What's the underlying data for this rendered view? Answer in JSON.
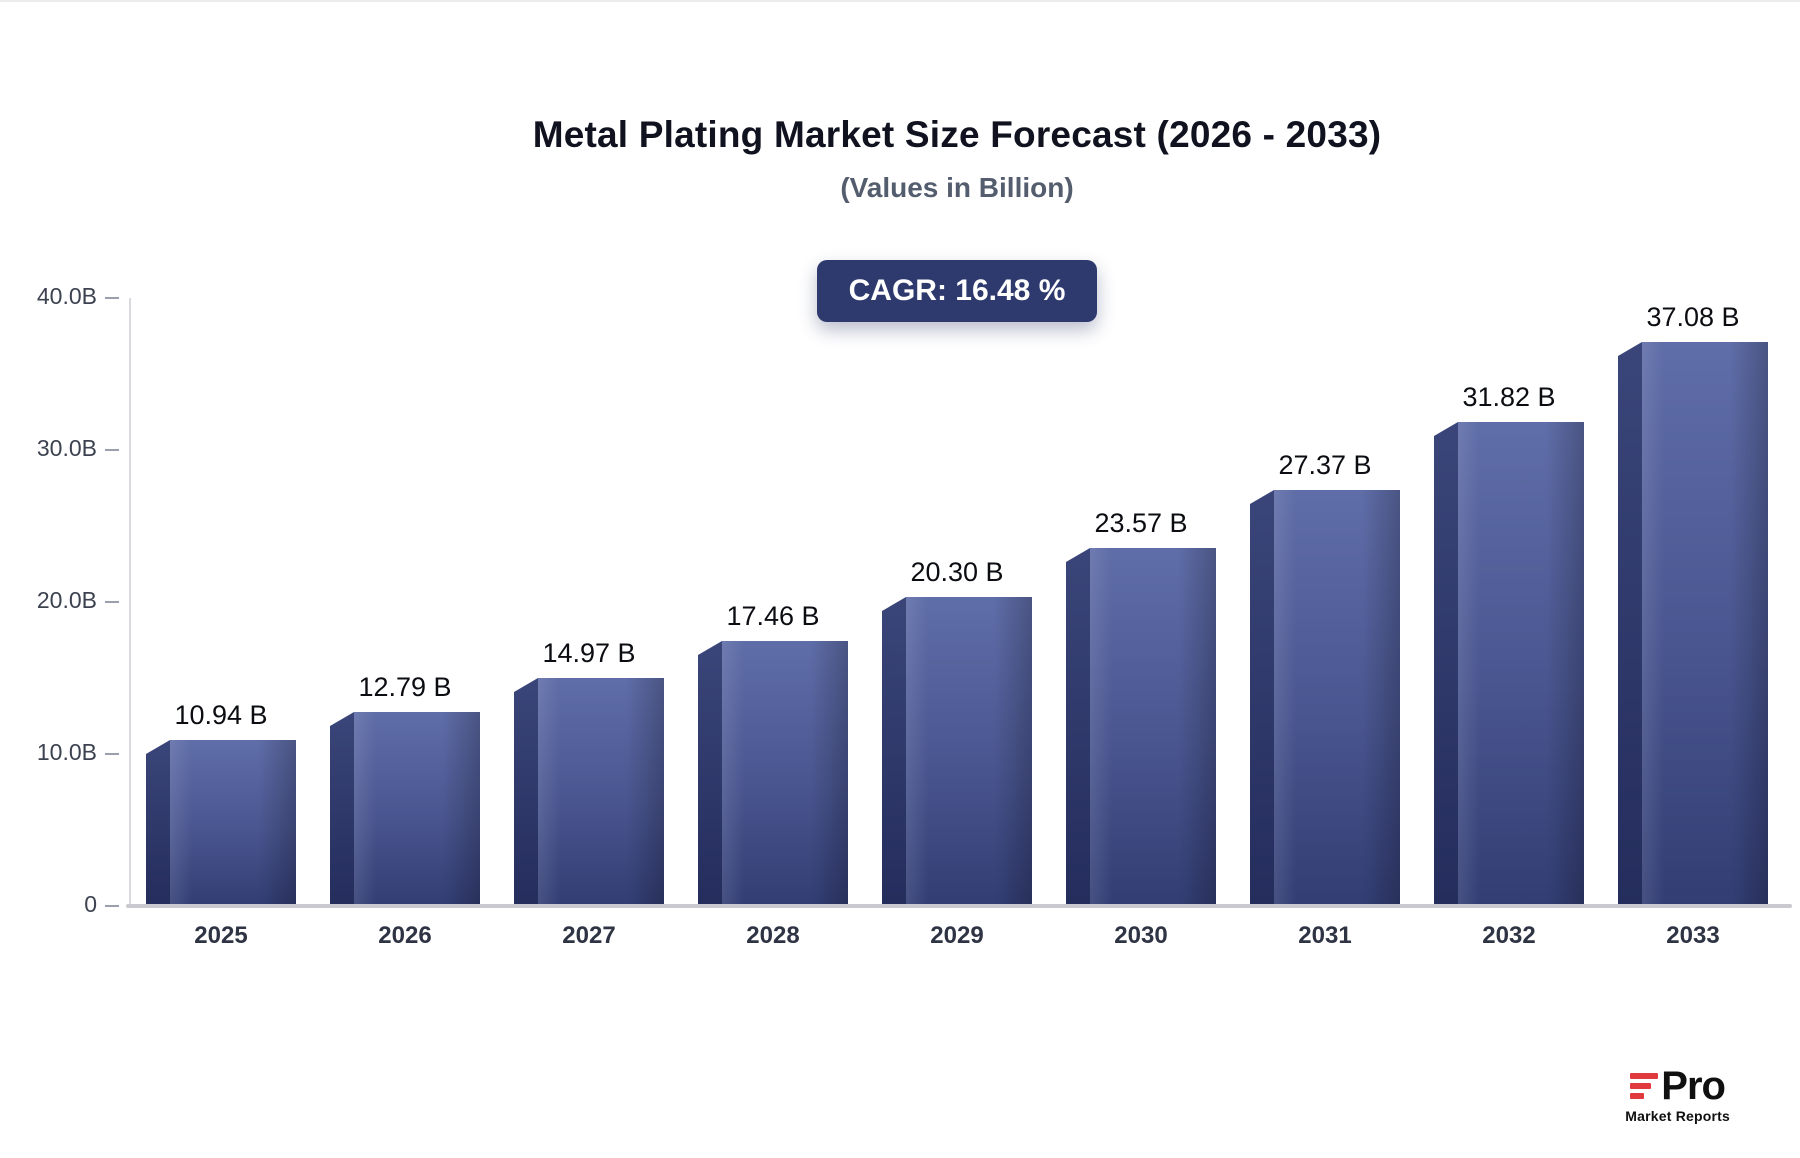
{
  "header": {
    "title": "Metal Plating Market Size Forecast (2026 - 2033)",
    "subtitle": "(Values in Billion)",
    "cagr_badge": "CAGR: 16.48 %"
  },
  "chart_data": {
    "type": "bar",
    "title": "Metal Plating Market Size Forecast (2026 - 2033)",
    "subtitle": "(Values in Billion)",
    "cagr_percent": 16.48,
    "unit": "Billion",
    "categories": [
      "2025",
      "2026",
      "2027",
      "2028",
      "2029",
      "2030",
      "2031",
      "2032",
      "2033"
    ],
    "values": [
      10.94,
      12.79,
      14.97,
      17.46,
      20.3,
      23.57,
      27.37,
      31.82,
      37.08
    ],
    "value_labels": [
      "10.94 B",
      "12.79 B",
      "14.97 B",
      "17.46 B",
      "20.30 B",
      "23.57 B",
      "27.37 B",
      "31.82 B",
      "37.08 B"
    ],
    "ylim": [
      0,
      40
    ],
    "yticks": [
      0,
      10,
      20,
      30,
      40
    ],
    "ytick_labels": [
      "0",
      "10.0B",
      "20.0B",
      "30.0B",
      "40.0B"
    ],
    "xlabel": "",
    "ylabel": "",
    "grid": false,
    "legend": null,
    "bar_colors": {
      "front_top": "#5f6da8",
      "front_bottom": "#323d73",
      "side": "#283263"
    }
  },
  "logo": {
    "brand": "Pro",
    "subtext": "Market Reports",
    "accent_color": "#e03a3f"
  }
}
